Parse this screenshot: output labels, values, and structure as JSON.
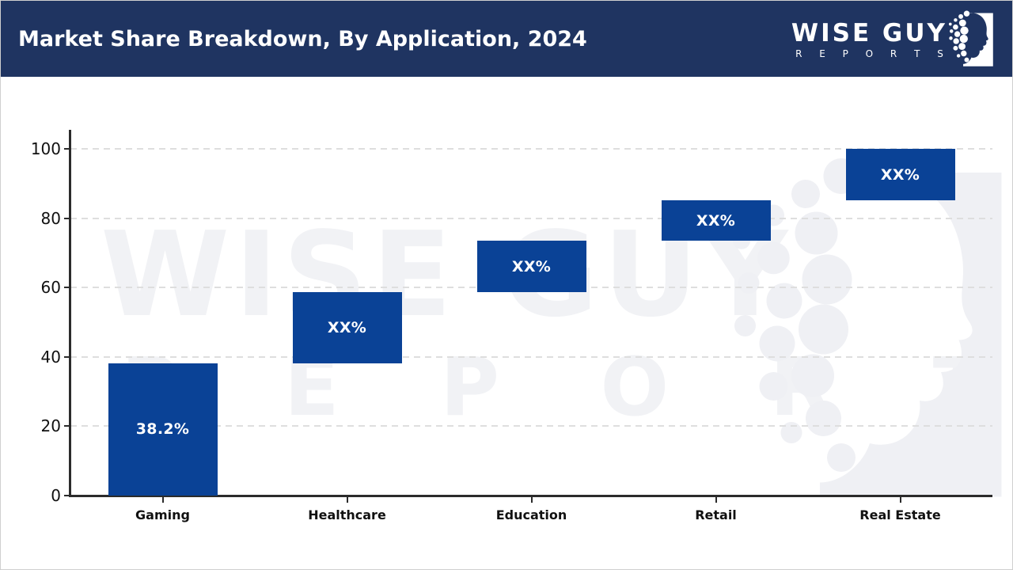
{
  "header": {
    "title": "Market Share Breakdown, By Application, 2024",
    "bg_color": "#1f3461",
    "logo": {
      "line1": "WISE GUY",
      "line2": "R E P O R T S",
      "face_icon": "wiseguy-face-icon"
    }
  },
  "watermark": {
    "line1": "WISE GUY",
    "line2": "R E P O R T S",
    "face_icon": "wiseguy-face-watermark-icon",
    "color": "#f1f2f5"
  },
  "chart_data": {
    "type": "bar",
    "subtype": "waterfall",
    "title": "Market Share Breakdown, By Application, 2024",
    "categories": [
      "Gaming",
      "Healthcare",
      "Education",
      "Retail",
      "Real Estate"
    ],
    "series": [
      {
        "name": "Market Share",
        "segments": [
          {
            "category": "Gaming",
            "base": 0,
            "top": 38.2,
            "value": 38.2,
            "label": "38.2%"
          },
          {
            "category": "Healthcare",
            "base": 38.2,
            "top": 58.6,
            "value": 20.4,
            "label": "XX%"
          },
          {
            "category": "Education",
            "base": 58.6,
            "top": 73.5,
            "value": 14.9,
            "label": "XX%"
          },
          {
            "category": "Retail",
            "base": 73.5,
            "top": 85.1,
            "value": 11.6,
            "label": "XX%"
          },
          {
            "category": "Real Estate",
            "base": 85.1,
            "top": 100,
            "value": 14.9,
            "label": "XX%"
          }
        ]
      }
    ],
    "xlabel": "",
    "ylabel": "",
    "yticks": [
      0,
      20,
      40,
      60,
      80,
      100
    ],
    "ylim": [
      0,
      107
    ],
    "grid": true,
    "grid_style": "dashed",
    "legend": "none",
    "bar_color": "#0a4296",
    "label_color": "#ffffff"
  }
}
